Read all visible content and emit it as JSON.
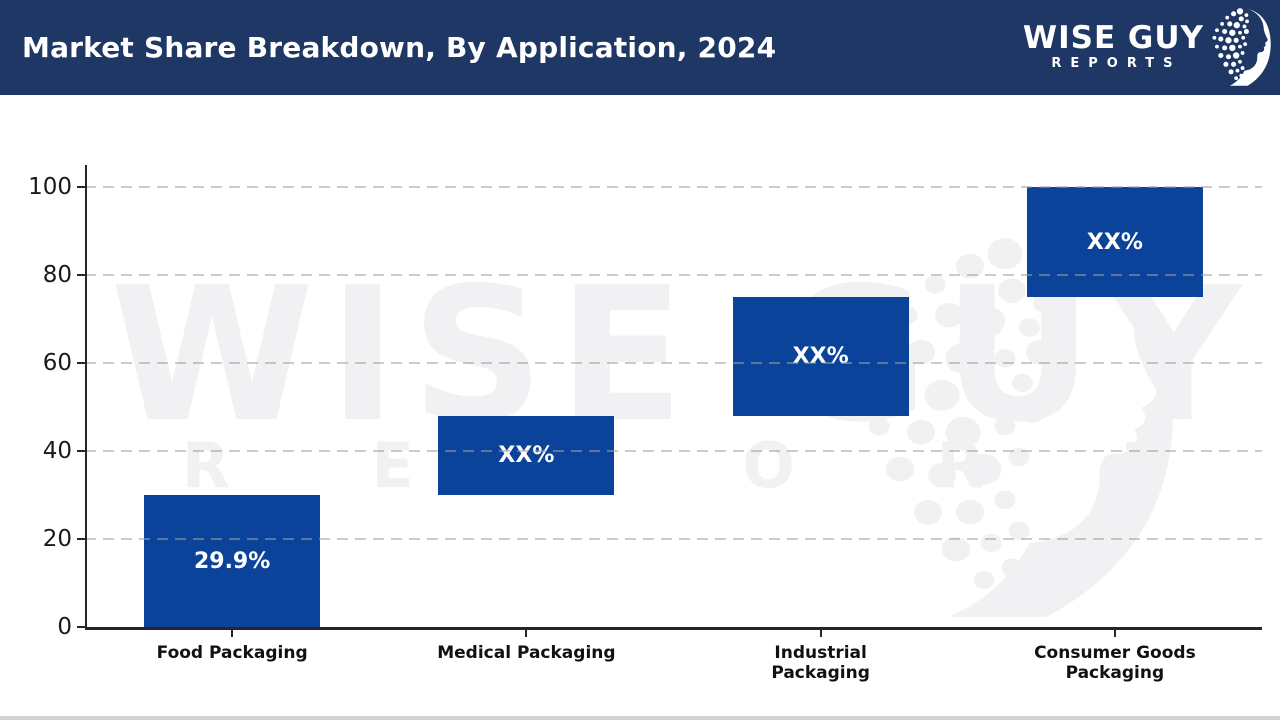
{
  "header": {
    "title": "Market Share Breakdown, By Application, 2024",
    "logo": {
      "brand": "WISE GUY",
      "sub": "REPORTS"
    }
  },
  "watermark": {
    "brand": "WISE GUY",
    "sub": "R E P O R T S"
  },
  "colors": {
    "header_bg": "#1e3765",
    "bar": "#0a4399",
    "bar_label": "#ffffff",
    "grid": "#a0a0a0",
    "axis": "#262626",
    "tick_text": "#1a1a1a",
    "watermark": "#f1f1f3",
    "bottom_strip": "#d2d2d2"
  },
  "chart_data": {
    "type": "bar",
    "subtype": "floating-waterfall",
    "title": "Market Share Breakdown, By Application, 2024",
    "categories": [
      "Food Packaging",
      "Medical Packaging",
      "Industrial Packaging",
      "Consumer Goods Packaging"
    ],
    "x_display_labels": [
      "Food Packaging",
      "Medical Packaging",
      "Industrial\nPackaging",
      "Consumer Goods\nPackaging"
    ],
    "segments": [
      {
        "category": "Food Packaging",
        "start": 0,
        "end": 29.9,
        "label": "29.9%"
      },
      {
        "category": "Medical Packaging",
        "start": 29.9,
        "end": 48,
        "label": "XX%"
      },
      {
        "category": "Industrial Packaging",
        "start": 48,
        "end": 75,
        "label": "XX%"
      },
      {
        "category": "Consumer Goods Packaging",
        "start": 75,
        "end": 100,
        "label": "XX%"
      }
    ],
    "ylim": [
      0,
      100
    ],
    "yticks": [
      0,
      20,
      40,
      60,
      80,
      100
    ],
    "grid": "horizontal-dashed-over-bars",
    "legend": "none",
    "bar_color": "#0a4399"
  }
}
